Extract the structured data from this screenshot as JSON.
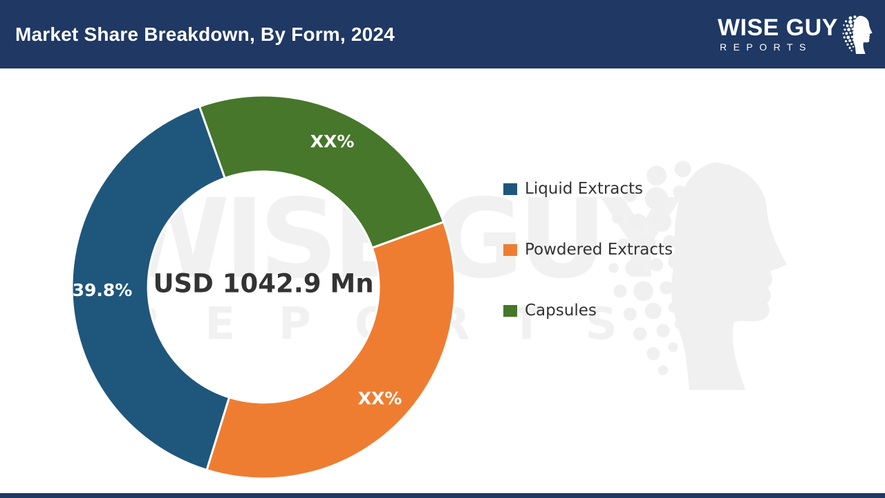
{
  "header": {
    "title": "Market Share Breakdown, By Form, 2024",
    "logo": {
      "line1": "WISE GUY",
      "line2": "REPORTS"
    }
  },
  "chart_data": {
    "type": "pie",
    "subtype": "donut",
    "title": "Market Share Breakdown, By Form, 2024",
    "center_label": "USD 1042.9 Mn",
    "legend_position": "right",
    "start_angle_deg": 109.5,
    "direction": "counterclockwise",
    "series": [
      {
        "name": "Liquid Extracts",
        "label": "39.8%",
        "value_pct": 39.8,
        "color": "#1F567C"
      },
      {
        "name": "Powdered Extracts",
        "label": "XX%",
        "value_pct": 35.3,
        "color": "#EE7D32"
      },
      {
        "name": "Capsules",
        "label": "XX%",
        "value_pct": 24.9,
        "color": "#47772B"
      }
    ]
  },
  "watermark": {
    "line1": "WISE GUY",
    "line2": "REPORTS"
  },
  "colors": {
    "header_bg": "#1F3864",
    "footer_bg": "#1F3864",
    "background": "#FFFFFF",
    "title_text": "#FFFFFF",
    "slice_border": "#FFFFFF",
    "slice_label_text": "#FFFFFF",
    "center_label_text": "#333333",
    "legend_text": "#333333",
    "watermark": "#F1F1F2"
  }
}
